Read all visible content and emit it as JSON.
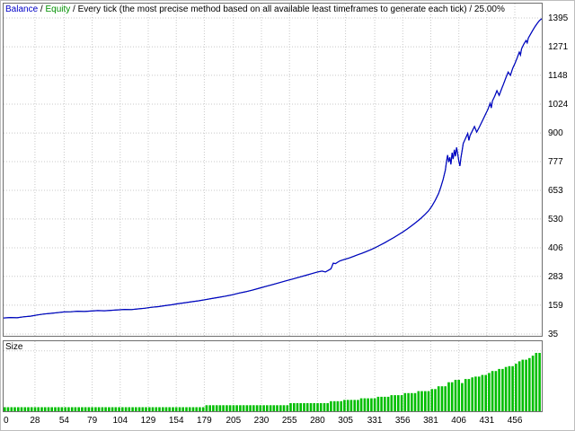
{
  "title": {
    "balance_label": "Balance",
    "sep": " / ",
    "equity_label": "Equity",
    "method_text": " / Every tick (the most precise method based on all available least timeframes to generate each tick) / 25.00%"
  },
  "size_panel": {
    "title": "Size"
  },
  "colors": {
    "balance": "#0000C8",
    "equity": "#009000",
    "size_bar": "#00BE00",
    "grid": "#C8C8C8",
    "panel_border": "#6E6E6E",
    "text": "#000000"
  },
  "chart_data": {
    "type": "line",
    "title": "Balance / Equity / Every tick (the most precise method based on all available least timeframes to generate each tick) / 25.00%",
    "x_range": [
      0,
      480
    ],
    "y_range": [
      35,
      1395
    ],
    "x_ticks": [
      0,
      28,
      54,
      79,
      104,
      129,
      154,
      179,
      205,
      230,
      255,
      280,
      305,
      331,
      356,
      381,
      406,
      431,
      456
    ],
    "y_ticks": [
      1395,
      1271,
      1148,
      1024,
      900,
      777,
      653,
      530,
      406,
      283,
      159,
      35
    ],
    "grid": true,
    "legend_position": "top-left",
    "series": [
      {
        "name": "Balance",
        "points": [
          [
            0,
            104
          ],
          [
            6,
            106
          ],
          [
            12,
            105
          ],
          [
            18,
            109
          ],
          [
            24,
            112
          ],
          [
            30,
            117
          ],
          [
            36,
            121
          ],
          [
            42,
            124
          ],
          [
            48,
            127
          ],
          [
            54,
            130
          ],
          [
            60,
            131
          ],
          [
            66,
            133
          ],
          [
            72,
            132
          ],
          [
            78,
            134
          ],
          [
            84,
            136
          ],
          [
            90,
            135
          ],
          [
            96,
            137
          ],
          [
            102,
            139
          ],
          [
            108,
            141
          ],
          [
            114,
            140
          ],
          [
            120,
            143
          ],
          [
            126,
            146
          ],
          [
            132,
            150
          ],
          [
            138,
            153
          ],
          [
            144,
            157
          ],
          [
            150,
            161
          ],
          [
            156,
            166
          ],
          [
            162,
            170
          ],
          [
            168,
            174
          ],
          [
            174,
            178
          ],
          [
            180,
            183
          ],
          [
            186,
            188
          ],
          [
            192,
            193
          ],
          [
            198,
            198
          ],
          [
            204,
            204
          ],
          [
            210,
            211
          ],
          [
            216,
            217
          ],
          [
            222,
            224
          ],
          [
            228,
            232
          ],
          [
            234,
            240
          ],
          [
            240,
            248
          ],
          [
            246,
            256
          ],
          [
            252,
            264
          ],
          [
            258,
            272
          ],
          [
            264,
            280
          ],
          [
            270,
            288
          ],
          [
            275,
            295
          ],
          [
            280,
            302
          ],
          [
            284,
            306
          ],
          [
            287,
            302
          ],
          [
            290,
            310
          ],
          [
            292,
            316
          ],
          [
            294,
            340
          ],
          [
            296,
            338
          ],
          [
            298,
            344
          ],
          [
            300,
            350
          ],
          [
            304,
            356
          ],
          [
            308,
            362
          ],
          [
            312,
            369
          ],
          [
            316,
            376
          ],
          [
            320,
            383
          ],
          [
            324,
            391
          ],
          [
            328,
            399
          ],
          [
            332,
            408
          ],
          [
            336,
            418
          ],
          [
            340,
            428
          ],
          [
            344,
            439
          ],
          [
            348,
            450
          ],
          [
            352,
            462
          ],
          [
            356,
            474
          ],
          [
            360,
            487
          ],
          [
            364,
            501
          ],
          [
            368,
            516
          ],
          [
            372,
            532
          ],
          [
            376,
            550
          ],
          [
            379,
            565
          ],
          [
            382,
            585
          ],
          [
            385,
            610
          ],
          [
            388,
            640
          ],
          [
            390,
            668
          ],
          [
            392,
            700
          ],
          [
            394,
            740
          ],
          [
            395,
            775
          ],
          [
            396,
            805
          ],
          [
            397,
            775
          ],
          [
            398,
            795
          ],
          [
            399,
            765
          ],
          [
            400,
            815
          ],
          [
            401,
            788
          ],
          [
            402,
            828
          ],
          [
            403,
            800
          ],
          [
            404,
            838
          ],
          [
            405,
            812
          ],
          [
            406,
            778
          ],
          [
            407,
            758
          ],
          [
            408,
            795
          ],
          [
            409,
            825
          ],
          [
            410,
            855
          ],
          [
            412,
            876
          ],
          [
            414,
            898
          ],
          [
            415,
            868
          ],
          [
            416,
            888
          ],
          [
            418,
            908
          ],
          [
            420,
            928
          ],
          [
            422,
            904
          ],
          [
            424,
            922
          ],
          [
            426,
            942
          ],
          [
            428,
            962
          ],
          [
            430,
            982
          ],
          [
            432,
            1002
          ],
          [
            434,
            1028
          ],
          [
            435,
            1008
          ],
          [
            436,
            1038
          ],
          [
            438,
            1058
          ],
          [
            440,
            1082
          ],
          [
            442,
            1062
          ],
          [
            444,
            1088
          ],
          [
            446,
            1112
          ],
          [
            448,
            1138
          ],
          [
            450,
            1162
          ],
          [
            452,
            1148
          ],
          [
            454,
            1178
          ],
          [
            456,
            1198
          ],
          [
            458,
            1222
          ],
          [
            460,
            1248
          ],
          [
            461,
            1236
          ],
          [
            462,
            1262
          ],
          [
            464,
            1282
          ],
          [
            466,
            1298
          ],
          [
            467,
            1288
          ],
          [
            468,
            1308
          ],
          [
            470,
            1325
          ],
          [
            472,
            1342
          ],
          [
            474,
            1358
          ],
          [
            476,
            1372
          ],
          [
            478,
            1384
          ],
          [
            480,
            1392
          ]
        ]
      }
    ],
    "size_chart": {
      "type": "bar",
      "name": "Size",
      "v_max": 1.65,
      "grid_values": [
        1.5
      ],
      "steps": [
        {
          "from": 0,
          "to": 178,
          "v": 0.1
        },
        {
          "from": 179,
          "to": 252,
          "v": 0.15
        },
        {
          "from": 253,
          "to": 288,
          "v": 0.2
        },
        {
          "from": 289,
          "to": 300,
          "v": 0.25
        },
        {
          "from": 301,
          "to": 316,
          "v": 0.28
        },
        {
          "from": 317,
          "to": 330,
          "v": 0.32
        },
        {
          "from": 331,
          "to": 344,
          "v": 0.36
        },
        {
          "from": 345,
          "to": 356,
          "v": 0.4
        },
        {
          "from": 357,
          "to": 368,
          "v": 0.45
        },
        {
          "from": 369,
          "to": 378,
          "v": 0.5
        },
        {
          "from": 379,
          "to": 386,
          "v": 0.55
        },
        {
          "from": 387,
          "to": 393,
          "v": 0.62
        },
        {
          "from": 394,
          "to": 399,
          "v": 0.72
        },
        {
          "from": 400,
          "to": 406,
          "v": 0.78
        },
        {
          "from": 407,
          "to": 409,
          "v": 0.7
        },
        {
          "from": 410,
          "to": 414,
          "v": 0.8
        },
        {
          "from": 415,
          "to": 419,
          "v": 0.84
        },
        {
          "from": 420,
          "to": 424,
          "v": 0.86
        },
        {
          "from": 425,
          "to": 429,
          "v": 0.9
        },
        {
          "from": 430,
          "to": 434,
          "v": 0.95
        },
        {
          "from": 435,
          "to": 439,
          "v": 1.0
        },
        {
          "from": 440,
          "to": 444,
          "v": 1.05
        },
        {
          "from": 445,
          "to": 449,
          "v": 1.1
        },
        {
          "from": 450,
          "to": 453,
          "v": 1.12
        },
        {
          "from": 454,
          "to": 457,
          "v": 1.18
        },
        {
          "from": 458,
          "to": 461,
          "v": 1.24
        },
        {
          "from": 462,
          "to": 465,
          "v": 1.28
        },
        {
          "from": 466,
          "to": 469,
          "v": 1.32
        },
        {
          "from": 470,
          "to": 473,
          "v": 1.38
        },
        {
          "from": 474,
          "to": 477,
          "v": 1.45
        },
        {
          "from": 478,
          "to": 480,
          "v": 1.5
        }
      ]
    }
  }
}
